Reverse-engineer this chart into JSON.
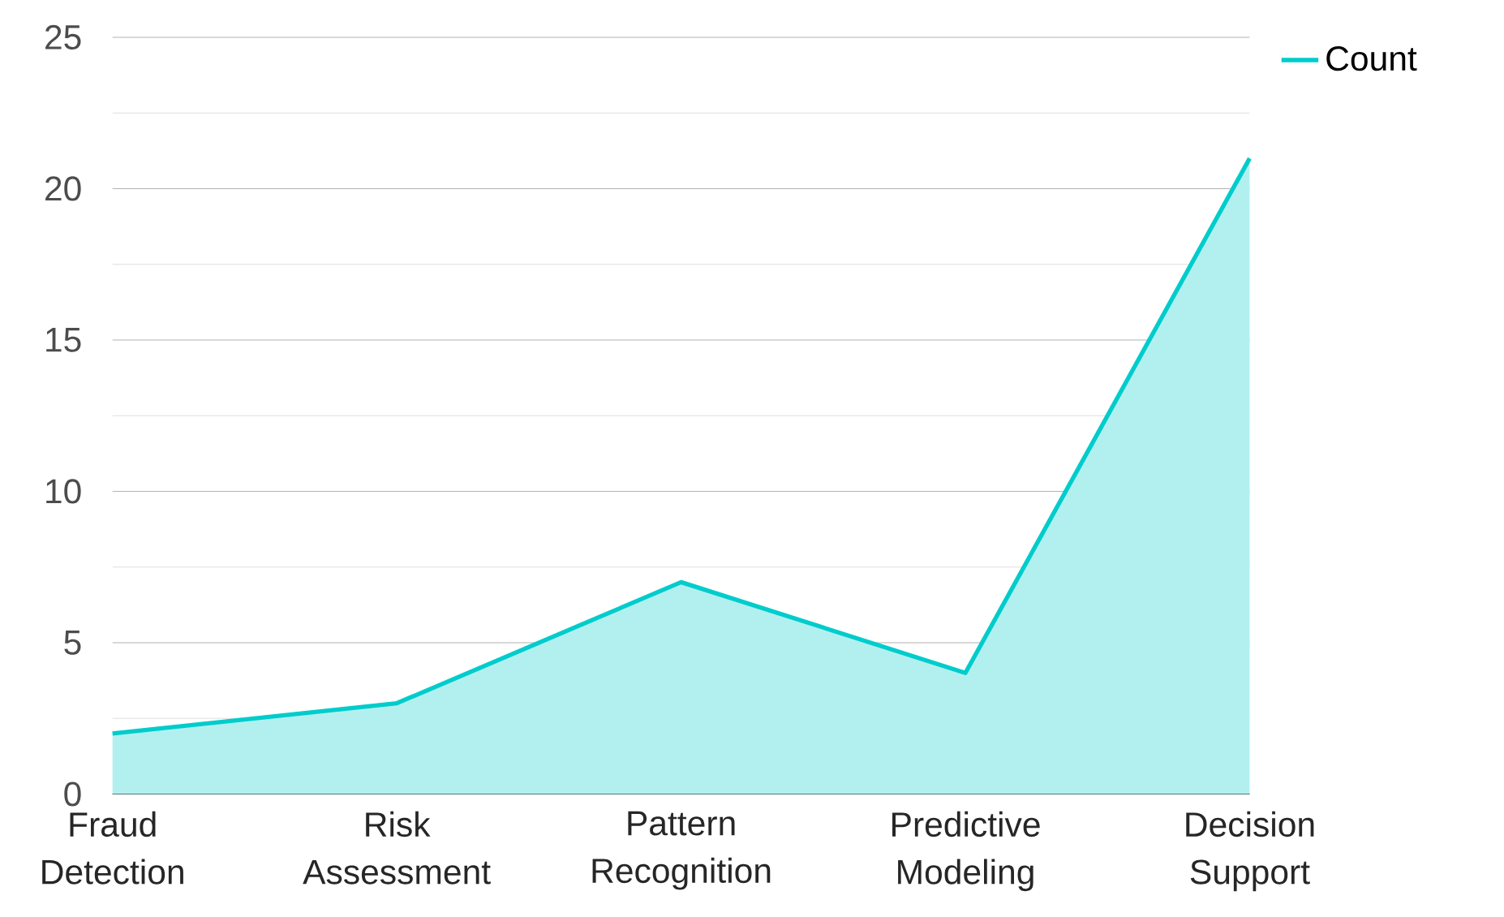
{
  "chart_data": {
    "type": "area",
    "categories": [
      "Fraud Detection",
      "Risk Assessment",
      "Pattern Recognition",
      "Predictive Modeling",
      "Decision Support"
    ],
    "series": [
      {
        "name": "Count",
        "color": "#00cccc",
        "values": [
          2,
          3,
          7,
          4,
          21
        ]
      }
    ],
    "ylim": [
      0,
      25
    ],
    "yticks": [
      0,
      5,
      10,
      15,
      20,
      25
    ],
    "grid": "y",
    "legend": "top right"
  }
}
